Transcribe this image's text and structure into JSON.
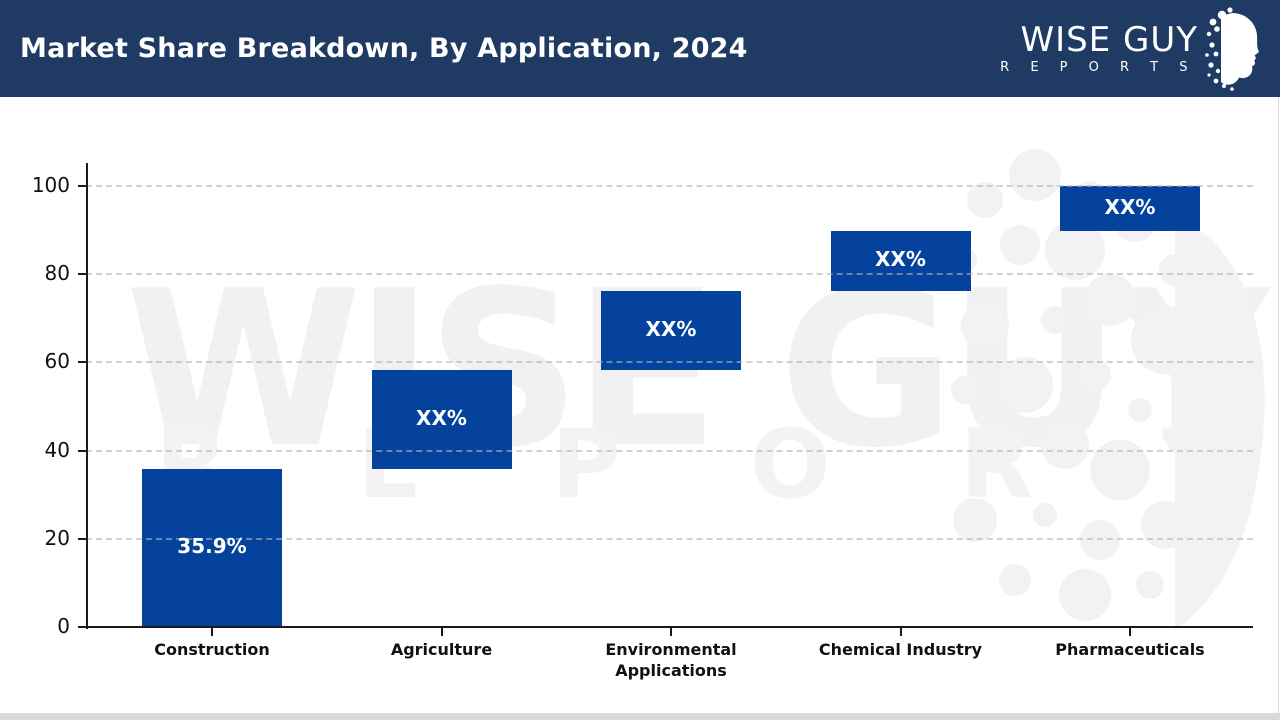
{
  "header": {
    "title": "Market Share Breakdown, By Application, 2024",
    "bg_color": "#1f3a63",
    "logo": {
      "line1": "WISE GUY",
      "line2": "R E P O R T S"
    }
  },
  "watermark": {
    "line1": "WISE GUY",
    "line2": "R E P O R T S"
  },
  "chart_data": {
    "type": "bar",
    "subtype": "waterfall",
    "title": "Market Share Breakdown, By Application, 2024",
    "categories": [
      "Construction",
      "Agriculture",
      "Environmental Applications",
      "Chemical Industry",
      "Pharmaceuticals"
    ],
    "segments": [
      {
        "category": "Construction",
        "start": 0,
        "end": 35.9,
        "label": "35.9%"
      },
      {
        "category": "Agriculture",
        "start": 35.9,
        "end": 58.2,
        "label": "XX%"
      },
      {
        "category": "Environmental Applications",
        "start": 58.2,
        "end": 76.1,
        "label": "XX%"
      },
      {
        "category": "Chemical Industry",
        "start": 76.1,
        "end": 89.7,
        "label": "XX%"
      },
      {
        "category": "Pharmaceuticals",
        "start": 89.7,
        "end": 100,
        "label": "XX%"
      }
    ],
    "ylim": [
      0,
      100
    ],
    "yticks": [
      0,
      20,
      40,
      60,
      80,
      100
    ],
    "grid": "horizontal dashed, drawn over bars",
    "legend": "none",
    "bar_color": "#05429d",
    "bar_label_color": "#ffffff",
    "axis_color": "#1a1a1a",
    "grid_color": "#d8d8d8"
  }
}
